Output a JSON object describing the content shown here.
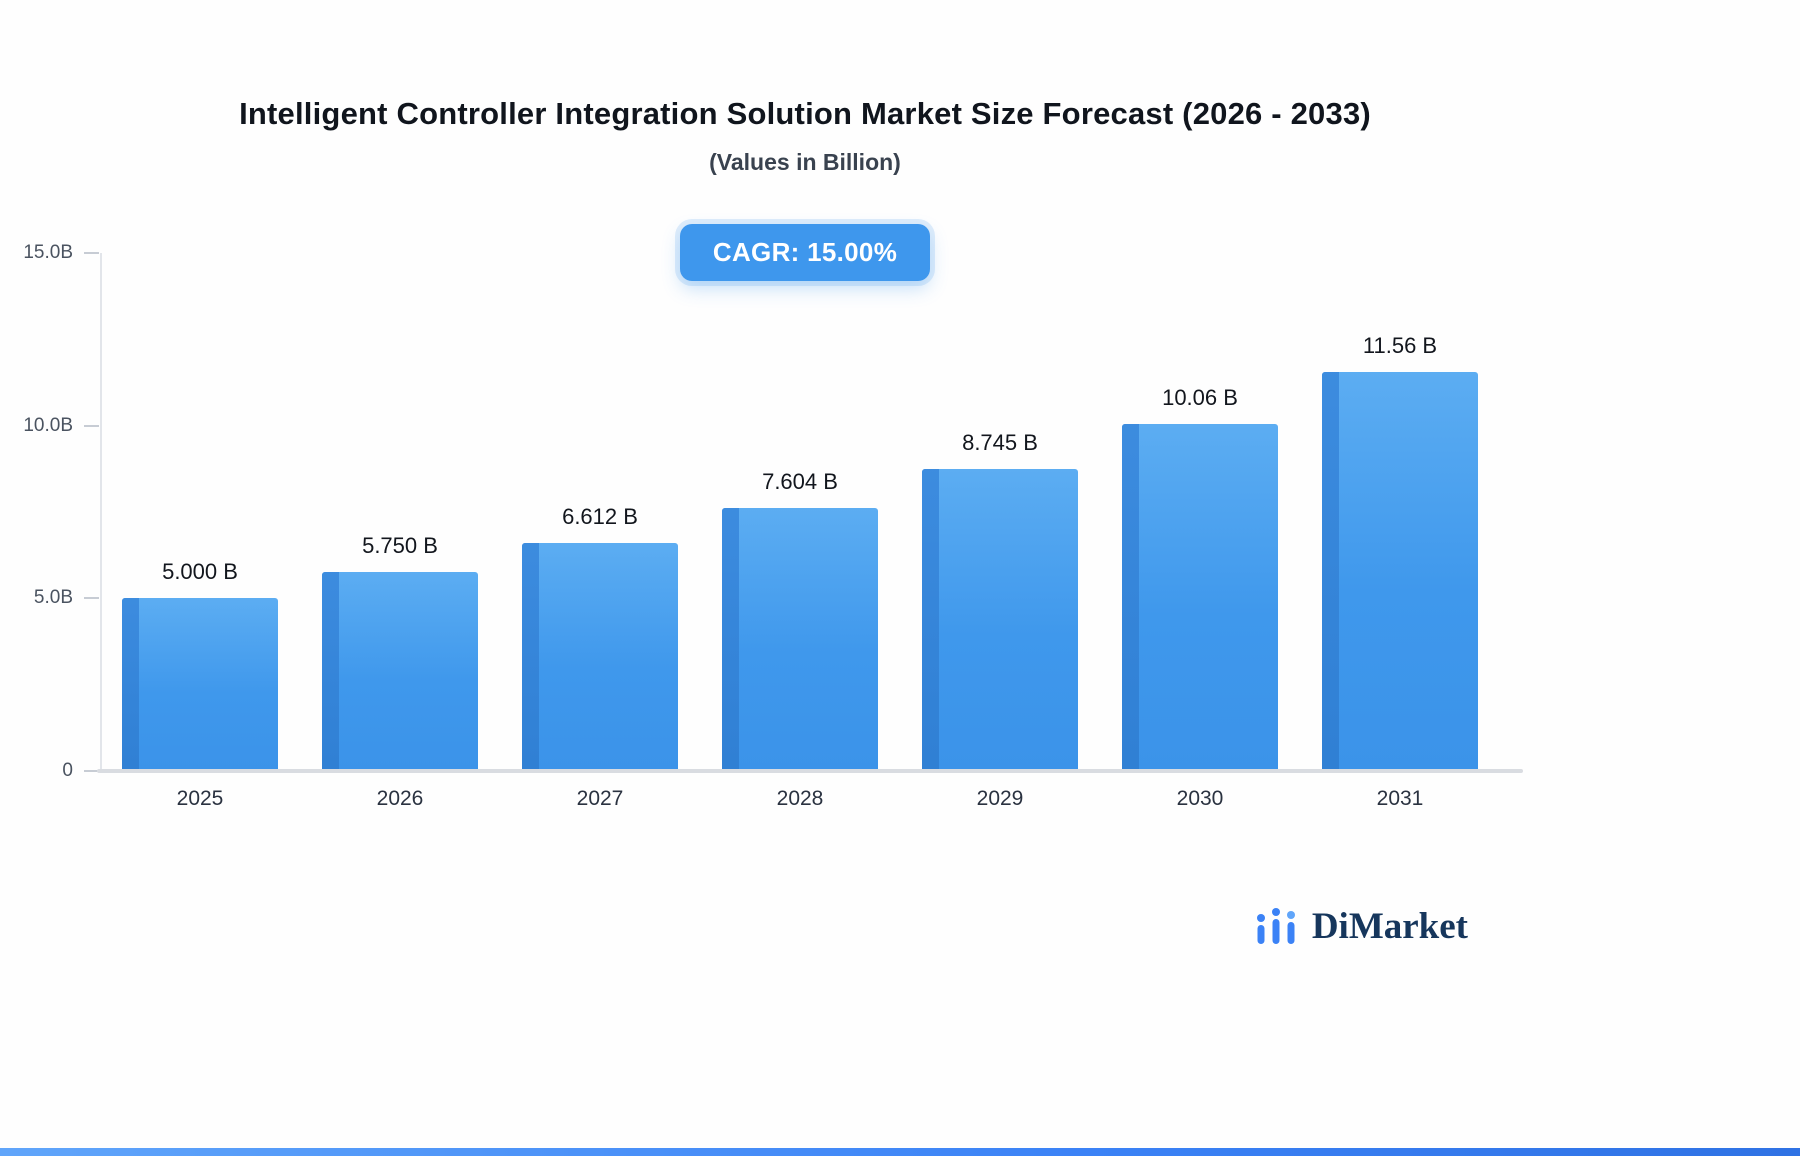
{
  "title": "Intelligent Controller Integration Solution Market Size Forecast (2026 - 2033)",
  "subtitle": "(Values in Billion)",
  "badge": {
    "label": "CAGR: 15.00%"
  },
  "logo": {
    "text": "DiMarket",
    "icon": "bar-chart-icon",
    "text_color": "#16365c",
    "accent": "#3b82f6"
  },
  "chart_data": {
    "type": "bar",
    "title": "Intelligent Controller Integration Solution Market Size Forecast (2026 - 2033)",
    "subtitle": "(Values in Billion)",
    "categories": [
      "2025",
      "2026",
      "2027",
      "2028",
      "2029",
      "2030",
      "2031"
    ],
    "values": [
      5.0,
      5.75,
      6.612,
      7.604,
      8.745,
      10.06,
      11.56
    ],
    "value_labels": [
      "5.000 B",
      "5.750 B",
      "6.612 B",
      "7.604 B",
      "8.745 B",
      "10.06 B",
      "11.56 B"
    ],
    "xlabel": "",
    "ylabel": "",
    "ylim": [
      0,
      15
    ],
    "yticks": [
      {
        "value": 15,
        "label": "15.0B"
      },
      {
        "value": 10,
        "label": "10.0B"
      },
      {
        "value": 5,
        "label": "5.0B"
      },
      {
        "value": 0,
        "label": "0"
      }
    ],
    "grid": false,
    "legend": false,
    "bar_color": "#3e97ec",
    "bar_side_color": "#2f7ed2",
    "cagr": "15.00%"
  }
}
